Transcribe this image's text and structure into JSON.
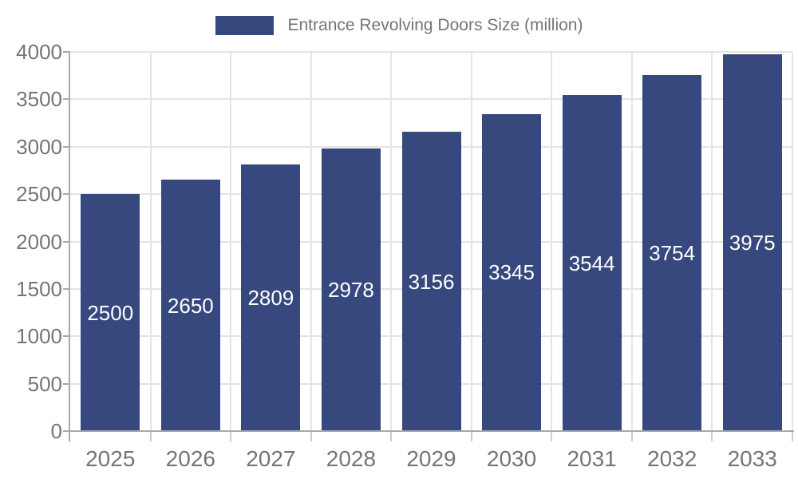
{
  "legend": {
    "label": "Entrance Revolving Doors Size (million)"
  },
  "chart_data": {
    "type": "bar",
    "title": "Entrance Revolving Doors Size (million)",
    "categories": [
      "2025",
      "2026",
      "2027",
      "2028",
      "2029",
      "2030",
      "2031",
      "2032",
      "2033"
    ],
    "values": [
      2500,
      2650,
      2809,
      2978,
      3156,
      3345,
      3544,
      3754,
      3975
    ],
    "bar_labels": [
      "2500",
      "2650",
      "2809",
      "2978",
      "3156",
      "3345",
      "3544",
      "3754",
      "3975"
    ],
    "xlabel": "",
    "ylabel": "",
    "ylim": [
      0,
      4000
    ],
    "yticks": [
      0,
      500,
      1000,
      1500,
      2000,
      2500,
      3000,
      3500,
      4000
    ],
    "grid": true,
    "legend_position": "top"
  },
  "colors": {
    "bar": "#36487D",
    "bar_label": "#ffffff",
    "axis_text": "#757575",
    "legend_text": "#757575",
    "axis_line": "#a9a9a9",
    "gridline": "#e4e4e4",
    "x_tick": "#cccccc",
    "background": "#ffffff"
  }
}
